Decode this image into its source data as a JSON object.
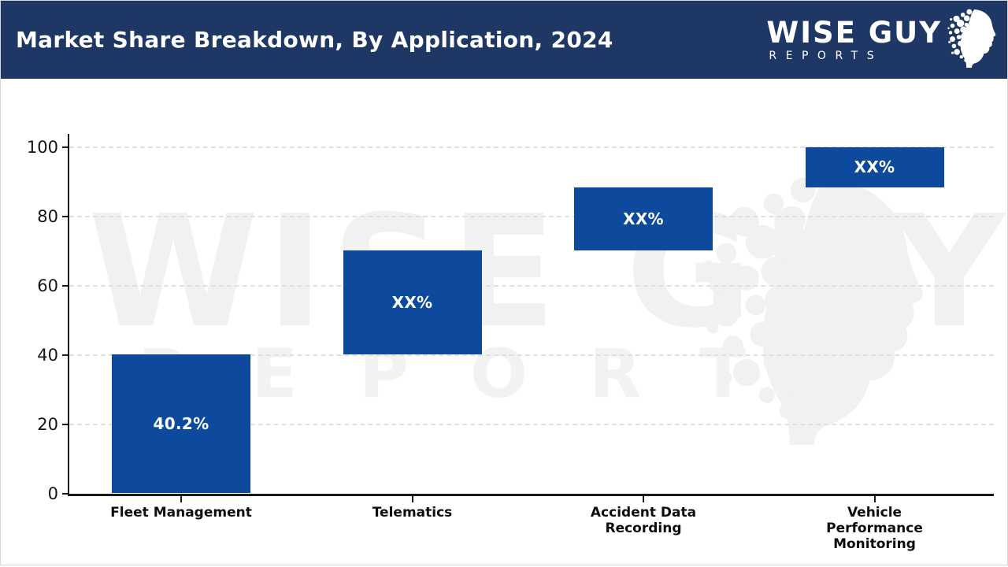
{
  "header": {
    "title": "Market Share Breakdown, By Application, 2024",
    "bg_color": "#1f3765",
    "logo": {
      "line1": "WISE GUY",
      "line2": "REPORTS"
    }
  },
  "watermark": {
    "line1": "WISE GUY",
    "line2": "REPORTS"
  },
  "chart_data": {
    "type": "bar",
    "subtype": "waterfall",
    "title": "Market Share Breakdown, By Application, 2024",
    "categories": [
      "Fleet Management",
      "Telematics",
      "Accident Data Recording",
      "Vehicle Performance Monitoring"
    ],
    "category_lines": [
      [
        "Fleet Management"
      ],
      [
        "Telematics"
      ],
      [
        "Accident Data",
        "Recording"
      ],
      [
        "Vehicle",
        "Performance",
        "Monitoring"
      ]
    ],
    "segments": [
      {
        "category": "Fleet Management",
        "start": 0,
        "end": 40.2,
        "value": 40.2,
        "label": "40.2%"
      },
      {
        "category": "Telematics",
        "start": 40.2,
        "end": 70.3,
        "value": 30.1,
        "label": "XX%"
      },
      {
        "category": "Accident Data Recording",
        "start": 70.3,
        "end": 88.4,
        "value": 18.1,
        "label": "XX%"
      },
      {
        "category": "Vehicle Performance Monitoring",
        "start": 88.4,
        "end": 100,
        "value": 11.6,
        "label": "XX%"
      }
    ],
    "yticks": [
      0,
      20,
      40,
      60,
      80,
      100
    ],
    "ylim": [
      0,
      100
    ],
    "xlabel": "",
    "ylabel": "",
    "bar_color": "#0d4a9e",
    "bar_label_color": "#ffffff",
    "grid": "horizontal-dashed",
    "legend": "none"
  }
}
